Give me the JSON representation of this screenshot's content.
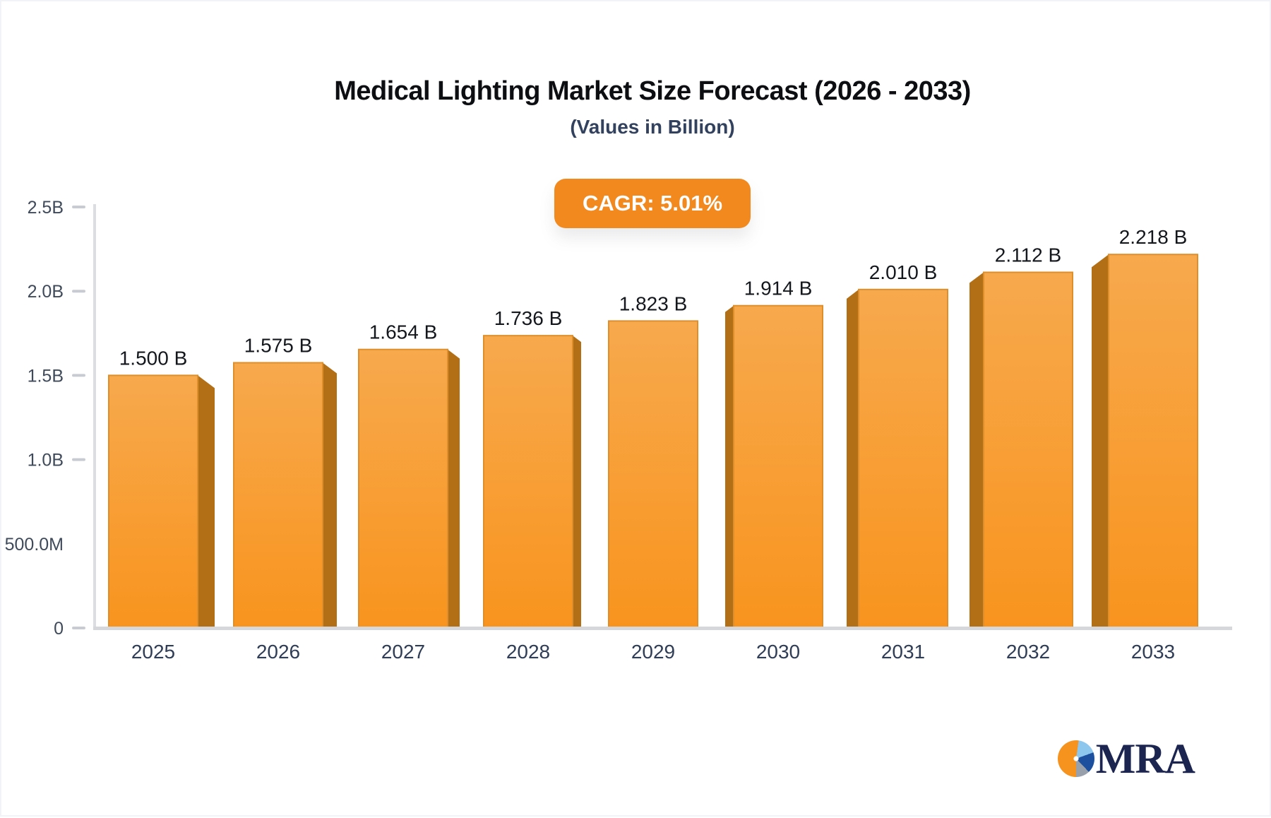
{
  "header": {
    "title": "Medical Lighting Market Size Forecast (2026 - 2033)",
    "subtitle": "(Values in Billion)",
    "cagr_badge": "CAGR: 5.01%"
  },
  "footer": {
    "logo_text": "MRA"
  },
  "colors": {
    "bar_face_top": "#F7A94D",
    "bar_face_bottom": "#F8941E",
    "bar_side": "#B26F16",
    "bar_stroke": "#DE8F2B",
    "badge_bg": "#F2891F",
    "axis_line": "#DBDDE1",
    "baseline": "#D5D7DB",
    "tick_dash": "#C8CCD2",
    "y_label": "#3F4A5A",
    "x_label": "#2F3D56",
    "value_label": "#14181D",
    "logo_navy": "#1B2550",
    "logo_orange": "#F6921E",
    "logo_light_blue": "#8EC7EE",
    "logo_blue": "#1C4F9E",
    "logo_gray": "#98A1AB"
  },
  "chart_data": {
    "type": "bar",
    "title": "Medical Lighting Market Size Forecast (2026 - 2033)",
    "subtitle": "(Values in Billion)",
    "annotation": "CAGR: 5.01%",
    "categories": [
      "2025",
      "2026",
      "2027",
      "2028",
      "2029",
      "2030",
      "2031",
      "2032",
      "2033"
    ],
    "values": [
      1.5,
      1.575,
      1.654,
      1.736,
      1.823,
      1.914,
      2.01,
      2.112,
      2.218
    ],
    "value_labels": [
      "1.500 B",
      "1.575 B",
      "1.654 B",
      "1.736 B",
      "1.823 B",
      "1.914 B",
      "2.010 B",
      "2.112 B",
      "2.218 B"
    ],
    "unit": "B",
    "xlabel": "",
    "ylabel": "",
    "ylim": [
      0,
      2.5
    ],
    "ytick_labels": [
      "2.5B",
      "2.0B",
      "1.5B",
      "1.0B",
      "500.0M",
      "0"
    ],
    "ytick_values": [
      2.5,
      2.0,
      1.5,
      1.0,
      0.5,
      0
    ],
    "yticks_with_dash": [
      2.5,
      2.0,
      1.5,
      1.0,
      0
    ],
    "grid": false,
    "legend": false,
    "bar_style": "3d-perspective"
  }
}
